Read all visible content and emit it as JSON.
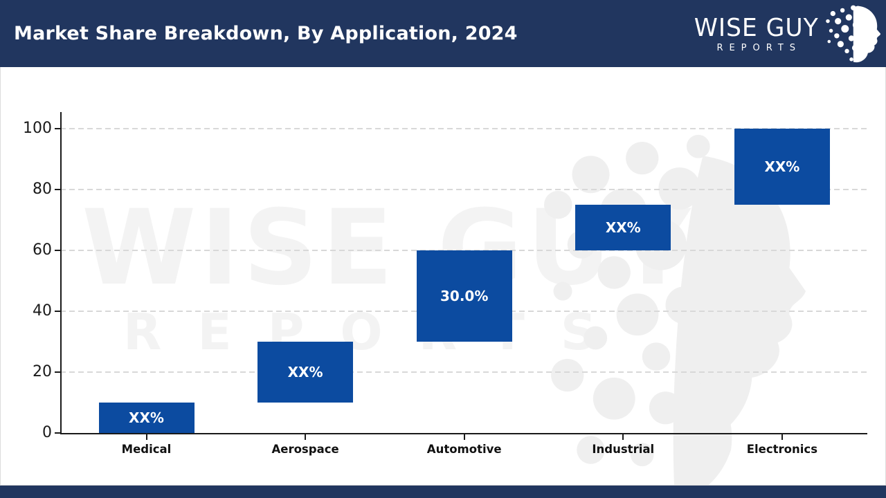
{
  "header": {
    "title": "Market Share Breakdown, By Application, 2024",
    "logo": {
      "line1": "WISE GUY",
      "line2": "REPORTS"
    }
  },
  "watermark": {
    "line1": "WISE GUY",
    "line2": "REPORTS"
  },
  "colors": {
    "header_bg": "#21365f",
    "bar": "#0c4ba0",
    "grid": "#d8d8d8",
    "axis": "#1a1a1a",
    "watermark": "#f3f3f3",
    "watermark_face": "#efefef"
  },
  "chart_data": {
    "type": "bar",
    "subtype": "floating-waterfall",
    "title": "Market Share Breakdown, By Application, 2024",
    "xlabel": "",
    "ylabel": "",
    "categories": [
      "Medical",
      "Aerospace",
      "Automotive",
      "Industrial",
      "Electronics"
    ],
    "segments": [
      {
        "category": "Medical",
        "start": 0,
        "end": 10,
        "label": "XX%"
      },
      {
        "category": "Aerospace",
        "start": 10,
        "end": 30,
        "label": "XX%"
      },
      {
        "category": "Automotive",
        "start": 30,
        "end": 60,
        "label": "30.0%"
      },
      {
        "category": "Industrial",
        "start": 60,
        "end": 75,
        "label": "XX%"
      },
      {
        "category": "Electronics",
        "start": 75,
        "end": 100,
        "label": "XX%"
      }
    ],
    "yticks": [
      0,
      20,
      40,
      60,
      80,
      100
    ],
    "ylim": [
      0,
      105.5
    ],
    "grid": "horizontal-dashed",
    "legend": "none"
  }
}
